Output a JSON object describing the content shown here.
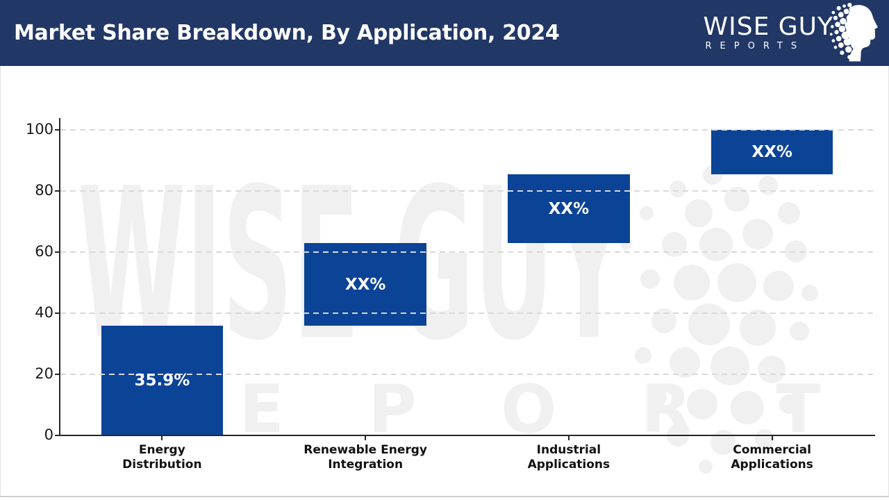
{
  "header": {
    "title": "Market Share Breakdown, By Application, 2024",
    "logo_line1": "WISE GUY",
    "logo_line2": "REPORTS"
  },
  "watermark": {
    "line1": "WISE GUY",
    "line2": "R E P O R T S"
  },
  "chart_data": {
    "type": "bar",
    "variant": "floating-waterfall",
    "title": "Market Share Breakdown, By Application, 2024",
    "xlabel": "",
    "ylabel": "",
    "ylim": [
      0,
      100
    ],
    "yticks": [
      0,
      20,
      40,
      60,
      80,
      100
    ],
    "grid": "dashed-horizontal",
    "legend": "none",
    "categories": [
      "Energy Distribution",
      "Renewable Energy Integration",
      "Industrial Applications",
      "Commercial Applications"
    ],
    "categories_lines": [
      [
        "Energy",
        "Distribution"
      ],
      [
        "Renewable Energy",
        "Integration"
      ],
      [
        "Industrial",
        "Applications"
      ],
      [
        "Commercial",
        "Applications"
      ]
    ],
    "segments": [
      {
        "category": "Energy Distribution",
        "start": 0,
        "end": 35.9,
        "label": "35.9%"
      },
      {
        "category": "Renewable Energy Integration",
        "start": 35.9,
        "end": 62.9,
        "label": "XX%"
      },
      {
        "category": "Industrial Applications",
        "start": 62.9,
        "end": 85.4,
        "label": "XX%"
      },
      {
        "category": "Commercial Applications",
        "start": 85.4,
        "end": 100,
        "label": "XX%"
      }
    ],
    "bar_color": "#0b4397",
    "bar_label_color": "#ffffff",
    "axis_color": "#262626",
    "gridline_color": "#d9d9d9",
    "tick_label_color": "#1a1a1a"
  },
  "colors": {
    "header_bg": "#213766",
    "page_bg": "#ffffff",
    "watermark": "#f0f0f1",
    "bottom_line": "#cccccc"
  }
}
